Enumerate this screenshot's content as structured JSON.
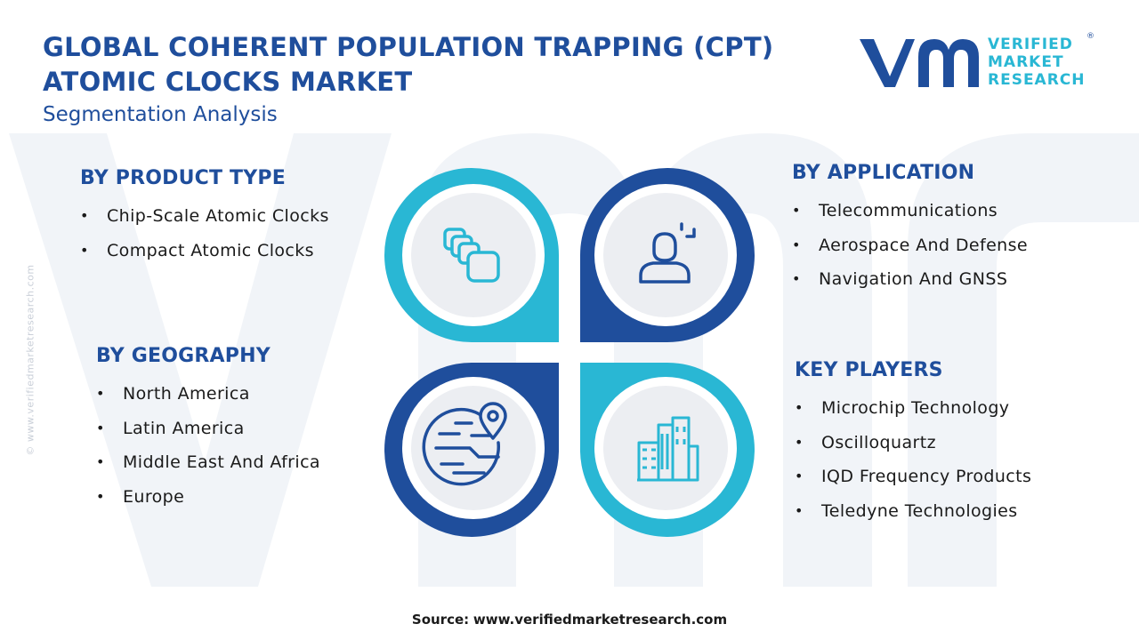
{
  "header": {
    "title_line1": "GLOBAL COHERENT POPULATION TRAPPING (CPT)",
    "title_line2": "ATOMIC CLOCKS MARKET",
    "subtitle": "Segmentation Analysis"
  },
  "logo": {
    "line1": "VERIFIED",
    "line2": "MARKET",
    "line3": "RESEARCH",
    "registered": "®"
  },
  "side_watermark": "© www.verifiedmarketresearch.com",
  "segments": {
    "product_type": {
      "heading": "BY PRODUCT TYPE",
      "items": [
        "Chip-Scale Atomic Clocks",
        "Compact Atomic Clocks"
      ]
    },
    "application": {
      "heading": "BY APPLICATION",
      "items": [
        "Telecommunications",
        "Aerospace And Defense",
        "Navigation And GNSS"
      ]
    },
    "geography": {
      "heading": "BY GEOGRAPHY",
      "items": [
        "North America",
        "Latin America",
        "Middle East And Africa",
        "Europe"
      ]
    },
    "key_players": {
      "heading": "KEY PLAYERS",
      "items": [
        "Microchip Technology",
        "Oscilloquartz",
        "IQD Frequency Products",
        "Teledyne Technologies"
      ]
    }
  },
  "icons": {
    "top_left": "chip-stack-icon",
    "top_right": "user-application-icon",
    "bottom_left": "globe-location-icon",
    "bottom_right": "city-buildings-icon"
  },
  "colors": {
    "primary_blue": "#1f4e9c",
    "cyan": "#29b7d4",
    "text": "#1a1a1a"
  },
  "source": {
    "label": "Source:",
    "url": "www.verifiedmarketresearch.com"
  }
}
